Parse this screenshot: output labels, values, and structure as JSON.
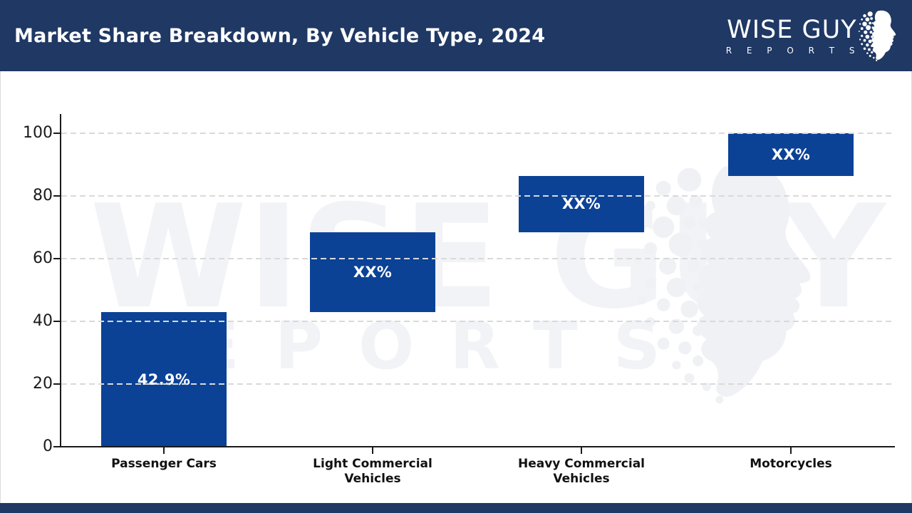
{
  "header": {
    "title": "Market Share Breakdown, By Vehicle Type, 2024",
    "logo": {
      "line1": "WISE GUY",
      "line2": "R E P O R T S",
      "icon": "dotted-head-profile-icon"
    }
  },
  "watermark": {
    "line1": "WISE GUY",
    "line2": "REPORTS",
    "icon": "dotted-head-profile-icon"
  },
  "colors": {
    "header_bg": "#1f3864",
    "bar": "#0b4296",
    "grid": "#d9d9d9",
    "axis": "#1a1a1a",
    "bar_label_text": "#ffffff",
    "watermark_text": "#f2f3f6",
    "watermark_head": "#f0f1f4"
  },
  "chart_data": {
    "type": "bar",
    "subtype": "floating-waterfall",
    "title": "Market Share Breakdown, By Vehicle Type, 2024",
    "categories": [
      "Passenger Cars",
      "Light Commercial Vehicles",
      "Heavy Commercial Vehicles",
      "Motorcycles"
    ],
    "categories_wrapped": [
      [
        "Passenger Cars"
      ],
      [
        "Light Commercial",
        "Vehicles"
      ],
      [
        "Heavy Commercial",
        "Vehicles"
      ],
      [
        "Motorcycles"
      ]
    ],
    "series": [
      {
        "name": "Market Share",
        "segments": [
          {
            "category": "Passenger Cars",
            "start": 0,
            "end": 42.9,
            "value": 42.9,
            "label": "42.9%"
          },
          {
            "category": "Light Commercial Vehicles",
            "start": 42.9,
            "end": 68.4,
            "value": 25.5,
            "label": "XX%"
          },
          {
            "category": "Heavy Commercial Vehicles",
            "start": 68.4,
            "end": 86.4,
            "value": 18.0,
            "label": "XX%"
          },
          {
            "category": "Motorcycles",
            "start": 86.4,
            "end": 100,
            "value": 13.6,
            "label": "XX%"
          }
        ]
      }
    ],
    "xlabel": "",
    "ylabel": "",
    "ylim": [
      0,
      100
    ],
    "yticks": [
      0,
      20,
      40,
      60,
      80,
      100
    ],
    "grid": "horizontal-dashed",
    "legend": false
  }
}
